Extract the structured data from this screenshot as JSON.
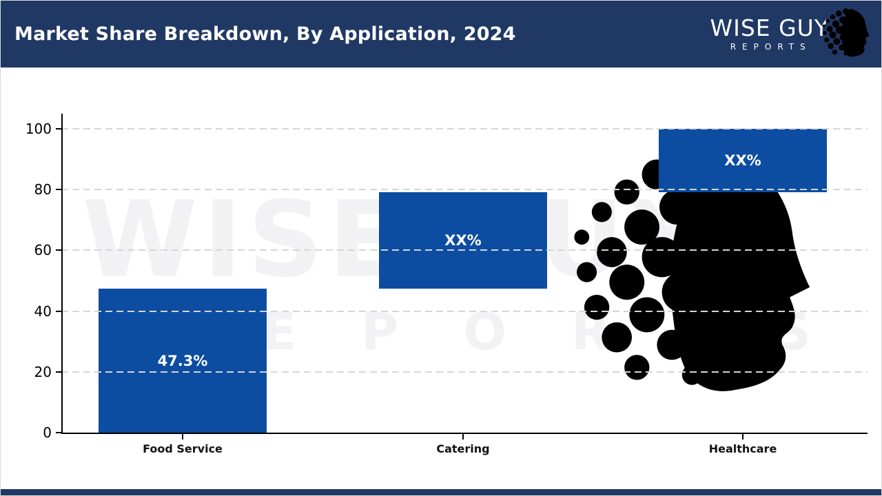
{
  "header": {
    "title": "Market Share Breakdown, By Application, 2024",
    "logo": {
      "line1": "WISE GUY",
      "line2": "REPORTS"
    }
  },
  "watermark": {
    "line1": "WISE GUY",
    "line2": "R E P O R T S"
  },
  "footer": {},
  "chart_data": {
    "type": "bar",
    "subtype": "floating-waterfall",
    "title": "Market Share Breakdown, By Application, 2024",
    "xlabel": "",
    "ylabel": "",
    "categories": [
      "Food Service",
      "Catering",
      "Healthcare"
    ],
    "segments": [
      {
        "category": "Food Service",
        "start": 0,
        "end": 47.3,
        "label": "47.3%"
      },
      {
        "category": "Catering",
        "start": 47.3,
        "end": 79.2,
        "label": "XX%"
      },
      {
        "category": "Healthcare",
        "start": 79.2,
        "end": 100,
        "label": "XX%"
      }
    ],
    "yticks": [
      0,
      20,
      40,
      60,
      80,
      100
    ],
    "ylim": [
      0,
      105
    ],
    "grid": "horizontal-dashed",
    "legend": "none",
    "bar_color": "#0c4da2",
    "bar_label_color": "#ffffff",
    "grid_color": "#d6d6d6",
    "axis_color": "#000000",
    "header_color": "#203864"
  }
}
